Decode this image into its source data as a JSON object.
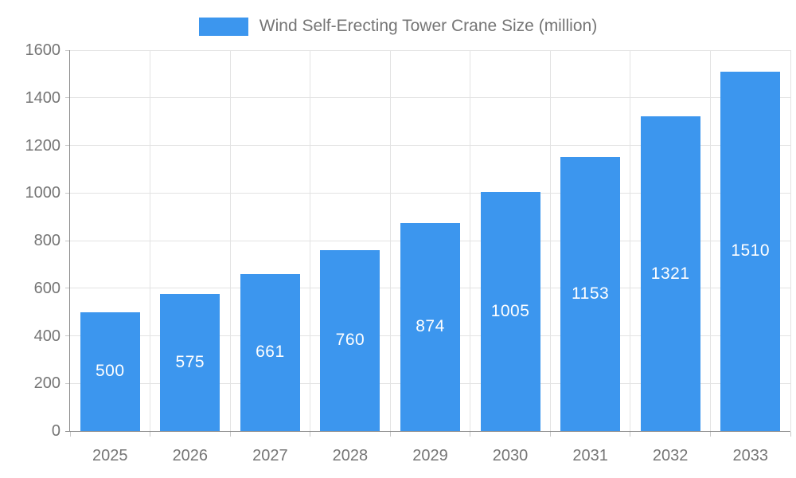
{
  "chart_data": {
    "type": "bar",
    "title": "Wind Self-Erecting Tower Crane Size (million)",
    "series_name": "Wind Self-Erecting Tower Crane Size (million)",
    "categories": [
      "2025",
      "2026",
      "2027",
      "2028",
      "2029",
      "2030",
      "2031",
      "2032",
      "2033"
    ],
    "values": [
      500,
      575,
      661,
      760,
      874,
      1005,
      1153,
      1321,
      1510
    ],
    "value_labels": [
      "500",
      "575",
      "661",
      "760",
      "874",
      "1005",
      "1153",
      "1321",
      "1510"
    ],
    "xlabel": "",
    "ylabel": "",
    "ylim": [
      0,
      1600
    ],
    "ytick_step": 200,
    "yticks": [
      0,
      200,
      400,
      600,
      800,
      1000,
      1200,
      1400,
      1600
    ],
    "grid": true,
    "legend_position": "top-center",
    "value_label_position": "inside-center"
  },
  "colors": {
    "bar": "#3C96EE",
    "grid": "#E3E3E3",
    "axis": "#8A8A8A",
    "tick": "#C8C8C8",
    "text": "#757575",
    "value_label": "#FFFFFF"
  }
}
